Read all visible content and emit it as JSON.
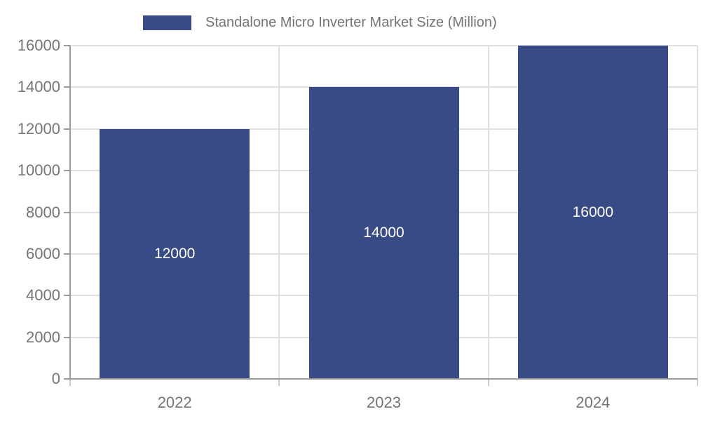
{
  "chart_data": {
    "type": "bar",
    "title": "Standalone Micro Inverter Market Size (Million)",
    "categories": [
      "2022",
      "2023",
      "2024"
    ],
    "values": [
      12000,
      14000,
      16000
    ],
    "data_labels": [
      "12000",
      "14000",
      "16000"
    ],
    "ytick_labels": [
      "0",
      "2000",
      "4000",
      "6000",
      "8000",
      "10000",
      "12000",
      "14000",
      "16000"
    ],
    "ylim": [
      0,
      16000
    ],
    "ytick_step": 2000,
    "xlabel": "",
    "ylabel": "",
    "grid": true,
    "legend_position": "top",
    "colors": {
      "bar": "#394b87",
      "data_label": "#ffffff",
      "axis_text": "#757575",
      "grid_line": "#e0e0e0",
      "axis_line": "#9b9b9b",
      "x_tick": "#c9cdd9"
    }
  }
}
